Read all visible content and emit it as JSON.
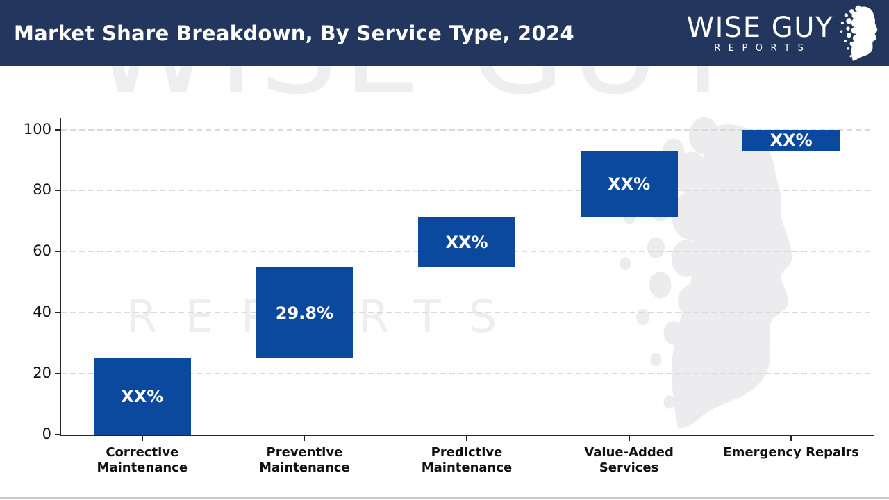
{
  "header": {
    "title": "Market Share Breakdown, By Service Type, 2024",
    "logo": {
      "brand": "WISE GUY",
      "sub": "REPORTS"
    }
  },
  "watermark": {
    "brand": "WISE GUY",
    "sub": "REPORTS"
  },
  "chart_data": {
    "type": "bar",
    "subtype": "waterfall-floating-bars",
    "title": "Market Share Breakdown, By Service Type, 2024",
    "categories": [
      "Corrective Maintenance",
      "Preventive Maintenance",
      "Predictive Maintenance",
      "Value-Added Services",
      "Emergency Repairs"
    ],
    "category_lines": [
      [
        "Corrective",
        "Maintenance"
      ],
      [
        "Preventive",
        "Maintenance"
      ],
      [
        "Predictive",
        "Maintenance"
      ],
      [
        "Value-Added",
        "Services"
      ],
      [
        "Emergency Repairs"
      ]
    ],
    "segments": [
      {
        "start": 0,
        "end": 25,
        "label": "XX%"
      },
      {
        "start": 25,
        "end": 54.8,
        "label": "29.8%"
      },
      {
        "start": 54.8,
        "end": 71.3,
        "label": "XX%"
      },
      {
        "start": 71.3,
        "end": 92.8,
        "label": "XX%"
      },
      {
        "start": 92.8,
        "end": 100,
        "label": "XX%"
      }
    ],
    "yticks": [
      0,
      20,
      40,
      60,
      80,
      100
    ],
    "ylim": [
      0,
      103.8
    ],
    "xlabel": "",
    "ylabel": "",
    "grid": "horizontal-dashed",
    "legend": "none",
    "bar_color": "#0b499e",
    "bar_label_color": "#ffffff"
  },
  "colors": {
    "header_bg": "#22365e",
    "bar": "#0b499e",
    "axis": "#262626",
    "gridline": "#dadada",
    "watermark": "#eeeef0",
    "text": "#111111"
  }
}
